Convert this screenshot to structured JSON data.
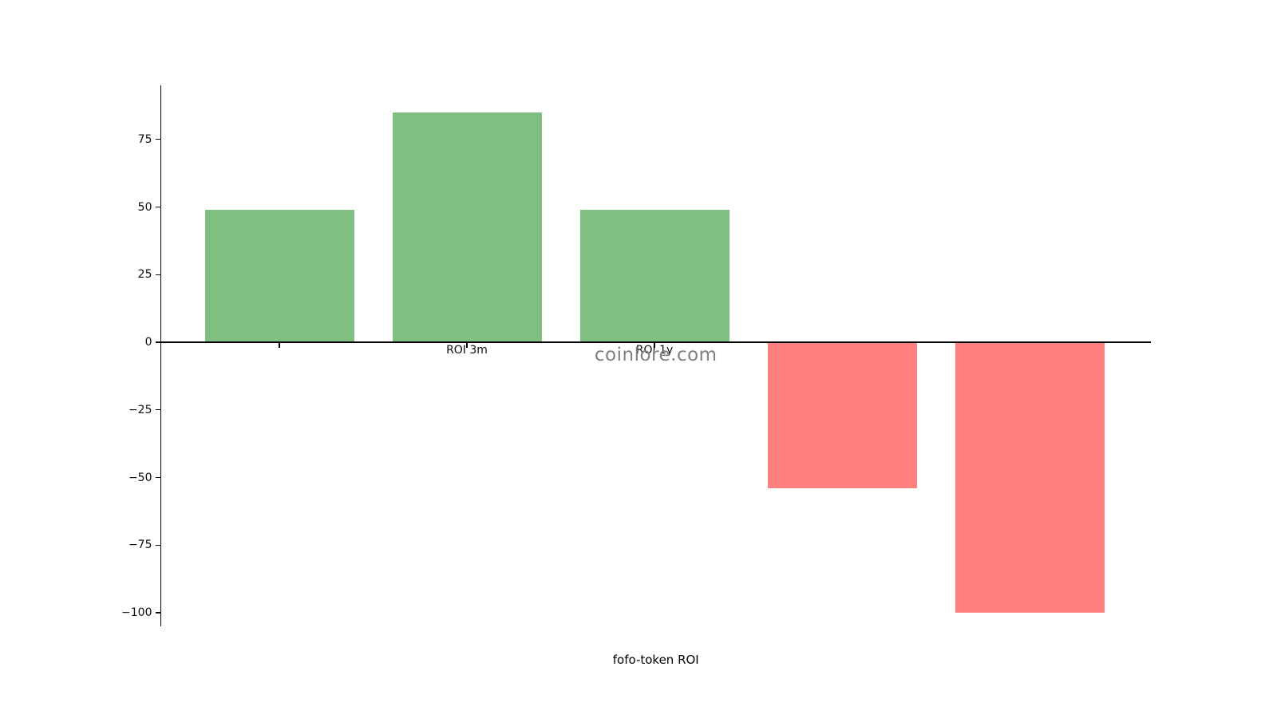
{
  "chart_data": {
    "type": "bar",
    "title": "fofo-token ROI",
    "watermark": "coinlore.com",
    "categories": [
      "",
      "ROI 3m",
      "ROI 1y",
      "",
      ""
    ],
    "values": [
      49,
      85,
      49,
      -54,
      -100
    ],
    "yticks": [
      75,
      50,
      25,
      0,
      -25,
      -50,
      -75,
      -100
    ],
    "ylim": [
      -105,
      95
    ],
    "xlabel": "",
    "ylabel": "",
    "grid": false,
    "legend": "none",
    "colors": {
      "positive_bar": "#7fbf7f",
      "negative_bar": "#ff7f7f",
      "axis": "#000000",
      "tick_text": "#0d0d0d",
      "watermark": "#808080",
      "title_text": "#000000",
      "background": "#ffffff"
    }
  }
}
